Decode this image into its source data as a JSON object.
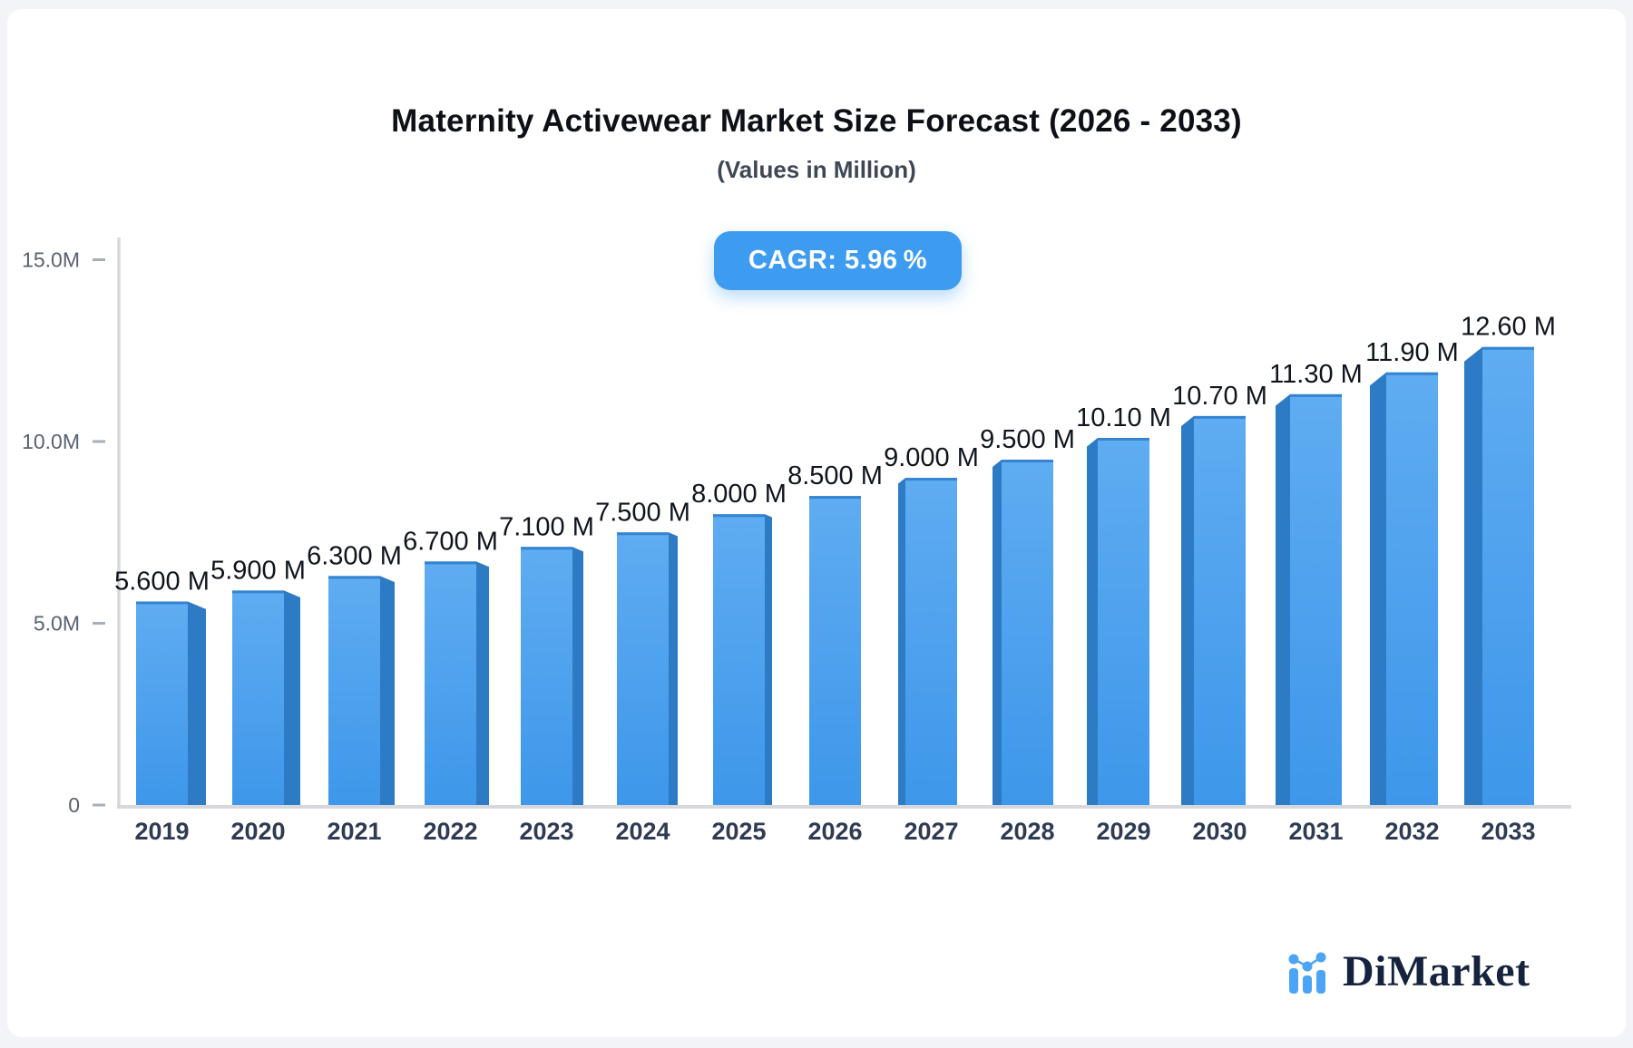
{
  "page": {
    "background_color": "#f3f4f7",
    "card_color": "#ffffff"
  },
  "header": {
    "title": "Maternity Activewear Market Size Forecast (2026 - 2033)",
    "subtitle": "(Values in Million)",
    "cagr_badge": "CAGR: 5.96 %",
    "badge_color": "#3d9bf0"
  },
  "chart_data": {
    "type": "bar",
    "title": "Maternity Activewear Market Size Forecast (2026 - 2033)",
    "unit": "Million",
    "categories": [
      "2019",
      "2020",
      "2021",
      "2022",
      "2023",
      "2024",
      "2025",
      "2026",
      "2027",
      "2028",
      "2029",
      "2030",
      "2031",
      "2032",
      "2033"
    ],
    "values": [
      5.6,
      5.9,
      6.3,
      6.7,
      7.1,
      7.5,
      8.0,
      8.5,
      9.0,
      9.5,
      10.1,
      10.7,
      11.3,
      11.9,
      12.6
    ],
    "value_labels": [
      "5.600 M",
      "5.900 M",
      "6.300 M",
      "6.700 M",
      "7.100 M",
      "7.500 M",
      "8.000 M",
      "8.500 M",
      "9.000 M",
      "9.500 M",
      "10.10 M",
      "10.70 M",
      "11.30 M",
      "11.90 M",
      "12.60 M"
    ],
    "xlabel": "",
    "ylabel": "",
    "ylim": [
      0,
      15
    ],
    "yticks": [
      {
        "value": 0,
        "label": "0"
      },
      {
        "value": 5,
        "label": "5.0M"
      },
      {
        "value": 10,
        "label": "10.0M"
      },
      {
        "value": 15,
        "label": "15.0M"
      }
    ],
    "grid": false,
    "legend": false,
    "style_3d": true,
    "colors": {
      "bar_front_top": "#5facf1",
      "bar_front_bottom": "#3e97ea",
      "bar_side": "#2e7bc5",
      "bar_top_edge": "#3583d1",
      "axis_line": "#d7d8de",
      "tick_mark": "#a9afb9",
      "y_tick_label": "#596273",
      "x_tick_label": "#2e3b52",
      "value_label": "#10151d"
    }
  },
  "footer": {
    "brand": "DiMarket",
    "brand_color": "#16233e",
    "brand_icon_color": "#4ba4f6"
  }
}
